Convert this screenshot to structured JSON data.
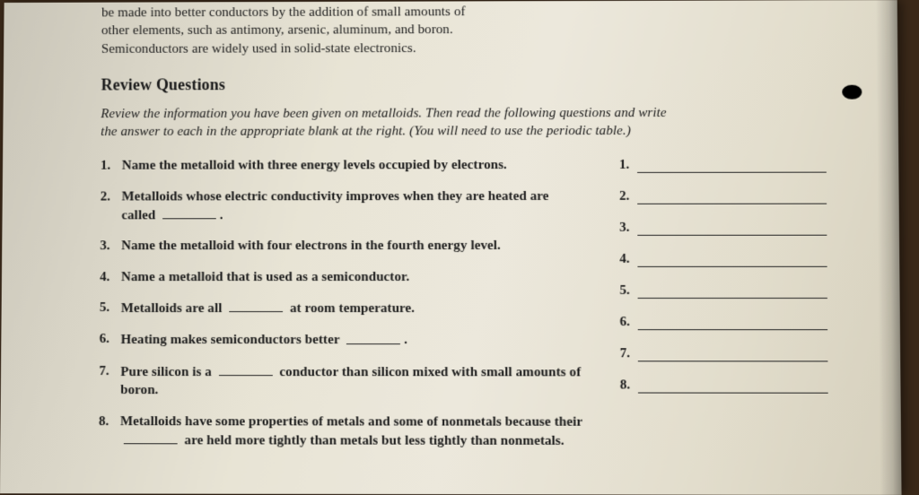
{
  "intro": {
    "line1": "be made into better conductors by the addition of small amounts of",
    "line2": "other elements, such as antimony, arsenic, aluminum, and boron.",
    "line3": "Semiconductors are widely used in solid-state electronics."
  },
  "section_title": "Review Questions",
  "instructions": {
    "line1": "Review the information you have been given on metalloids. Then read the following questions and write",
    "line2": "the answer to each in the appropriate blank at the right. (You will need to use the periodic table.)"
  },
  "questions": [
    {
      "n": "1.",
      "text": "Name the metalloid with three energy levels occupied by electrons."
    },
    {
      "n": "2.",
      "text": "Metalloids whose electric conductivity improves when they are heated are called ______."
    },
    {
      "n": "3.",
      "text": "Name the metalloid with four electrons in the fourth energy level."
    },
    {
      "n": "4.",
      "text": "Name a metalloid that is used as a semiconductor."
    },
    {
      "n": "5.",
      "text": "Metalloids are all ______ at room temperature."
    },
    {
      "n": "6.",
      "text": "Heating makes semiconductors better ______."
    },
    {
      "n": "7.",
      "text": "Pure silicon is a ______ conductor than silicon mixed with small amounts of boron."
    },
    {
      "n": "8.",
      "text": "Metalloids have some properties of metals and some of nonmetals because their ______ are held more tightly than metals but less tightly than nonmetals."
    }
  ],
  "answers": [
    {
      "n": "1."
    },
    {
      "n": "2."
    },
    {
      "n": "3."
    },
    {
      "n": "4."
    },
    {
      "n": "5."
    },
    {
      "n": "6."
    },
    {
      "n": "7."
    },
    {
      "n": "8."
    }
  ],
  "colors": {
    "paper_light": "#ece8dc",
    "paper_mid": "#d8d4c6",
    "paper_dark": "#c9c5b8",
    "ink": "#1a1a1a",
    "desk": "#3a2818"
  }
}
